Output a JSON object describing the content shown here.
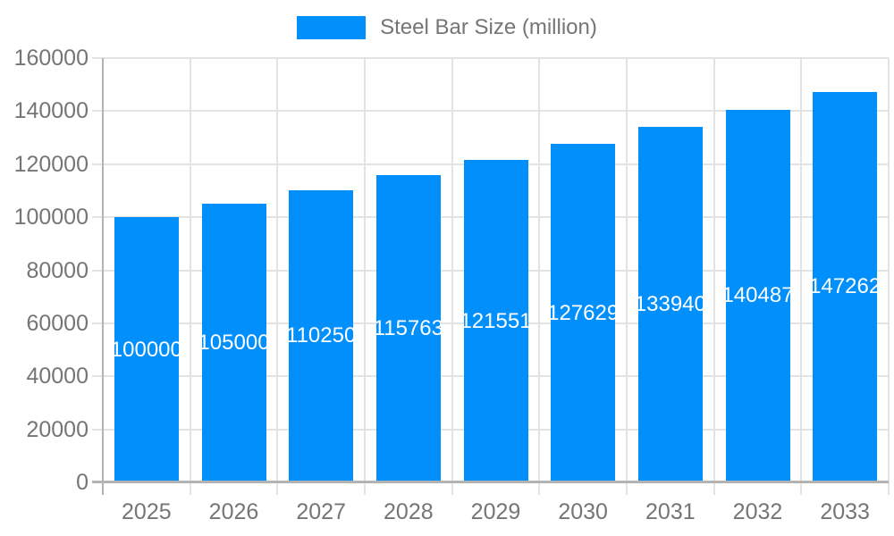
{
  "chart_data": {
    "type": "bar",
    "legend_label": "Steel Bar Size (million)",
    "legend_position": "top",
    "categories": [
      "2025",
      "2026",
      "2027",
      "2028",
      "2029",
      "2030",
      "2031",
      "2032",
      "2033"
    ],
    "values": [
      100000,
      105000,
      110250,
      115763,
      121551,
      127629,
      133940,
      140487,
      147262
    ],
    "value_labels": [
      "100000",
      "105000",
      "110250",
      "115763",
      "121551",
      "127629",
      "133940",
      "140487",
      "147262"
    ],
    "xlabel": "",
    "ylabel": "",
    "ylim": [
      0,
      160000
    ],
    "ytick_step": 20000,
    "ytick_labels": [
      "0",
      "20000",
      "40000",
      "60000",
      "80000",
      "100000",
      "120000",
      "140000",
      "160000"
    ],
    "grid": true,
    "colors": {
      "bar": "#008FFB",
      "bar_label": "#FFFFFF",
      "axis_text": "#757575",
      "gridline": "#E3E3E3",
      "axis_line": "#B3B3B3",
      "background": "#FFFFFF"
    }
  }
}
